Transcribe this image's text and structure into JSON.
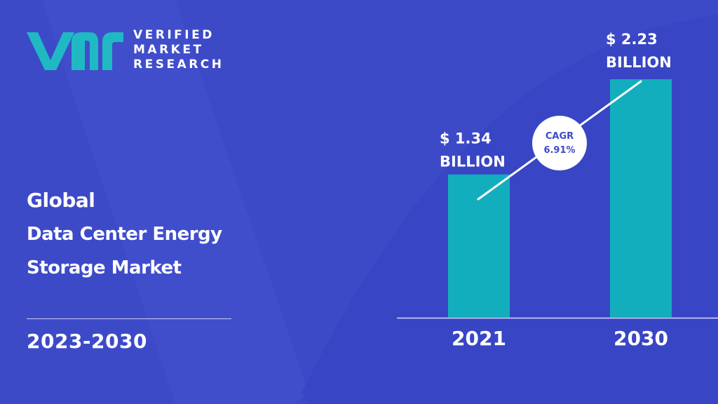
{
  "brand": {
    "line1": "VERIFIED",
    "line2": "MARKET",
    "line3": "RESEARCH",
    "logo_color": "#1fb9c3"
  },
  "report": {
    "title_line1": "Global",
    "title_line2": "Data Center Energy",
    "title_line3": "Storage Market",
    "period": "2023-2030"
  },
  "colors": {
    "background": "#3d4ac8",
    "bar": "#13aebd",
    "text": "#ffffff",
    "badge_bg": "#ffffff",
    "badge_text": "#3d4ac8"
  },
  "chart_data": {
    "type": "bar",
    "categories": [
      "2021",
      "2030"
    ],
    "values": [
      1.34,
      2.23
    ],
    "value_labels": [
      [
        "$ 1.34",
        "BILLION"
      ],
      [
        "$ 2.23",
        "BILLION"
      ]
    ],
    "cagr": {
      "label": "CAGR",
      "value": "6.91%"
    },
    "title": "",
    "xlabel": "",
    "ylabel": "",
    "grid": false,
    "legend": "none"
  }
}
